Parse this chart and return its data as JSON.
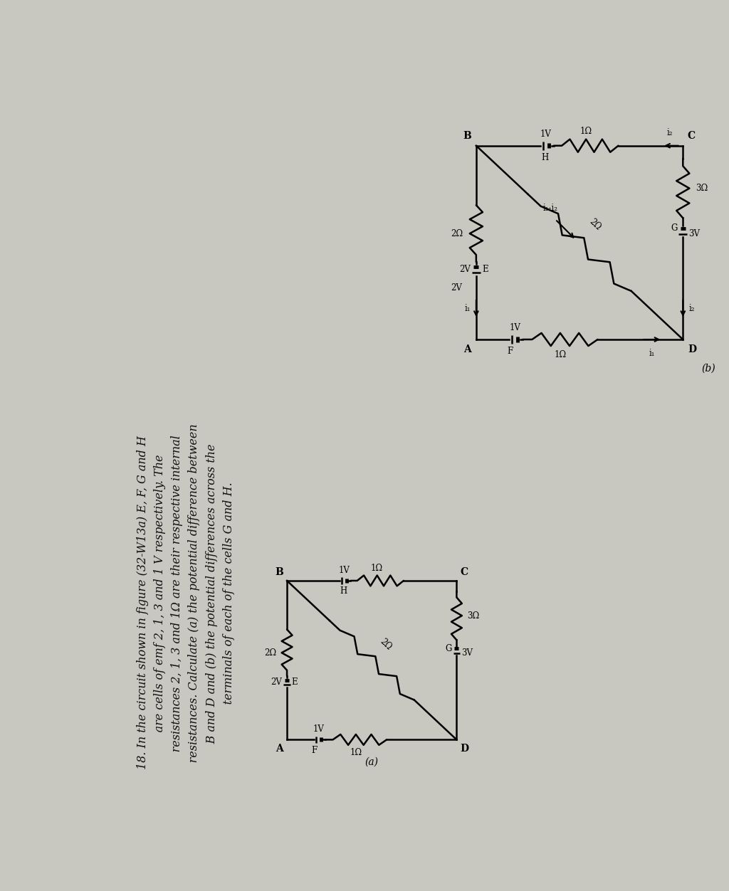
{
  "bg_color": "#c8c8c0",
  "text_color": "#111111",
  "circuit_line_color": "#000000",
  "text_block": [
    "In the circuit shown in figure (32-W13a) E, F, G and H",
    "are cells of emf 2, 1, 3 and 1 V respectively. The",
    "resistances 2, 1, 3 and 1Ω are their respective internal",
    "resistances. Calculate (a) the potential difference between",
    "B and D and (b) the potential differences across the",
    "terminals of each of the cells G and H."
  ],
  "question_number": "18.",
  "label_a": "(a)",
  "label_b": "(b)"
}
